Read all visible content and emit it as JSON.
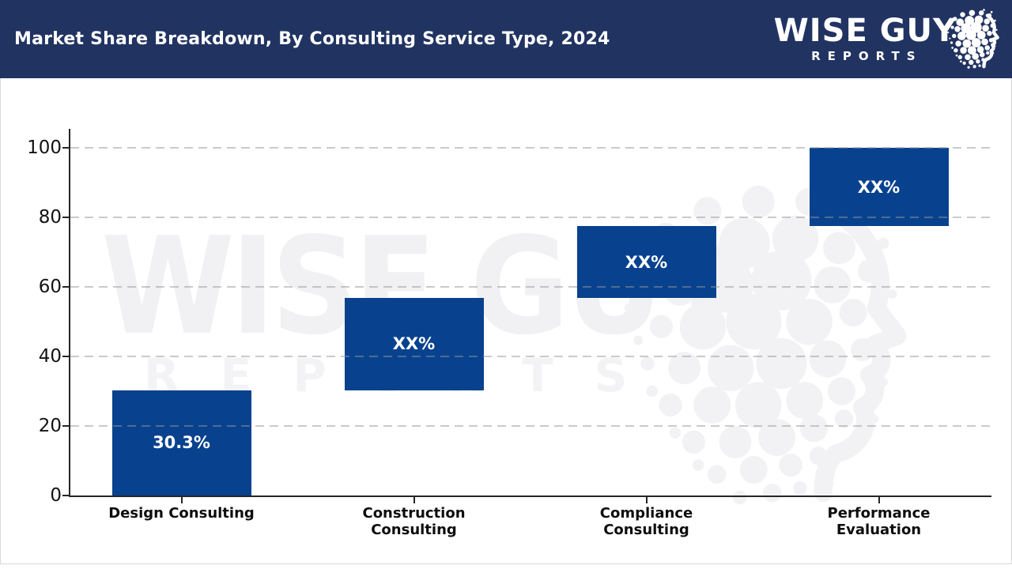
{
  "header": {
    "title": "Market Share Breakdown, By Consulting Service Type, 2024",
    "logo": {
      "line1": "WISE GUY",
      "line2": "REPORTS"
    }
  },
  "watermark": {
    "line1": "WISE GUY",
    "line2": "REPORTS"
  },
  "chart_data": {
    "type": "bar",
    "subtype": "floating-waterfall",
    "title": "Market Share Breakdown, By Consulting Service Type, 2024",
    "unit": "%",
    "categories": [
      "Design Consulting",
      "Construction Consulting",
      "Compliance Consulting",
      "Performance Evaluation"
    ],
    "category_label_lines": [
      [
        "Design Consulting"
      ],
      [
        "Construction",
        "Consulting"
      ],
      [
        "Compliance",
        "Consulting"
      ],
      [
        "Performance",
        "Evaluation"
      ]
    ],
    "segments": [
      {
        "category": "Design Consulting",
        "start": 0,
        "end": 30.3,
        "value_label": "30.3%",
        "value": 30.3
      },
      {
        "category": "Construction Consulting",
        "start": 30.3,
        "end": 56.8,
        "value_label": "XX%",
        "value_estimate": 26.5
      },
      {
        "category": "Compliance Consulting",
        "start": 56.8,
        "end": 77.5,
        "value_label": "XX%",
        "value_estimate": 20.7
      },
      {
        "category": "Performance Evaluation",
        "start": 77.5,
        "end": 100,
        "value_label": "XX%",
        "value_estimate": 22.5
      }
    ],
    "yticks": [
      0,
      20,
      40,
      60,
      80,
      100
    ],
    "ylim": [
      0,
      105
    ],
    "grid": {
      "horizontal": true,
      "style": "dashed"
    },
    "legend": null,
    "bar_color": "#08428E",
    "value_label_color": "#FFFFFF"
  },
  "colors": {
    "header_bg": "#213361",
    "page_bg": "#FFFFFF",
    "bar": "#08428E",
    "watermark": "#F1F1F3",
    "axis": "#262626",
    "grid_dash": "#C9C9C9",
    "frame_border": "#D8D8D8"
  }
}
